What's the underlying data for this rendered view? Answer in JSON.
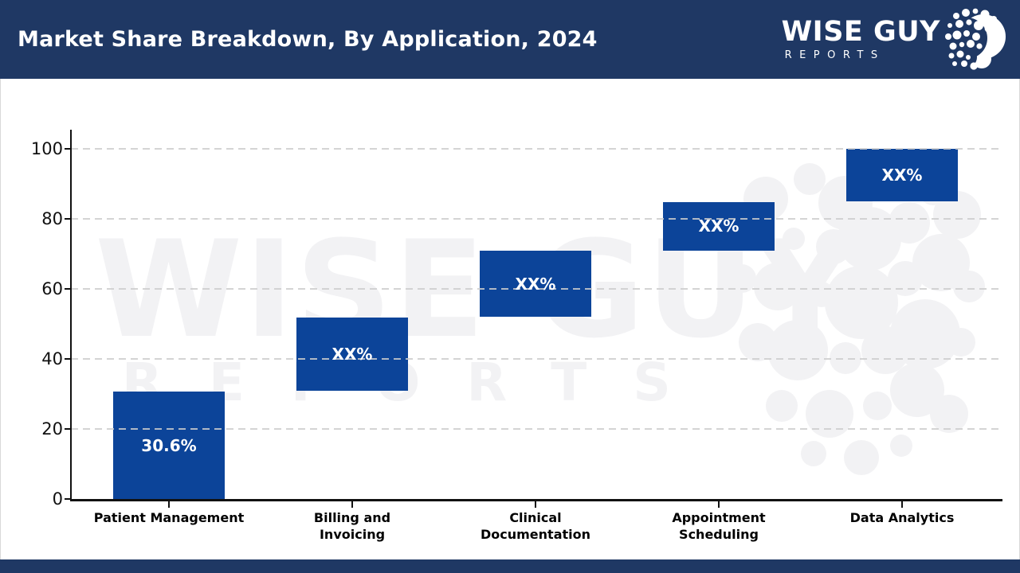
{
  "header": {
    "title": "Market Share Breakdown, By Application, 2024",
    "logo": {
      "name": "WISE GUY",
      "tagline": "REPORTS"
    }
  },
  "watermark": {
    "line1": "WISE GUY",
    "line2": "REPORTS"
  },
  "colors": {
    "header_bg": "#1f3864",
    "footer_bg": "#1f3864",
    "bar": "#0c4499",
    "bar_label_text": "#ffffff",
    "axis": "#111111",
    "gridline": "rgba(205,205,205,0.85)",
    "watermark": "#f2f2f4",
    "tick_label": "#111111"
  },
  "chart_data": {
    "type": "bar",
    "subtype": "waterfall",
    "title": "Market Share Breakdown, By Application, 2024",
    "categories": [
      "Patient Management",
      "Billing and Invoicing",
      "Clinical Documentation",
      "Appointment Scheduling",
      "Data Analytics"
    ],
    "category_label_lines": [
      [
        "Patient Management"
      ],
      [
        "Billing and",
        "Invoicing"
      ],
      [
        "Clinical",
        "Documentation"
      ],
      [
        "Appointment",
        "Scheduling"
      ],
      [
        "Data Analytics"
      ]
    ],
    "segments": [
      {
        "category": "Patient Management",
        "start": 0,
        "end": 30.6,
        "label": "30.6%"
      },
      {
        "category": "Billing and Invoicing",
        "start": 31,
        "end": 51.8,
        "label": "XX%"
      },
      {
        "category": "Clinical Documentation",
        "start": 52,
        "end": 70.8,
        "label": "XX%"
      },
      {
        "category": "Appointment Scheduling",
        "start": 71,
        "end": 84.8,
        "label": "XX%"
      },
      {
        "category": "Data Analytics",
        "start": 85,
        "end": 100,
        "label": "XX%"
      }
    ],
    "xlabel": "",
    "ylabel": "",
    "ylim": [
      0,
      100
    ],
    "yticks": [
      0,
      20,
      40,
      60,
      80,
      100
    ],
    "grid": "dashed horizontal, drawn over bars",
    "legend": null
  }
}
